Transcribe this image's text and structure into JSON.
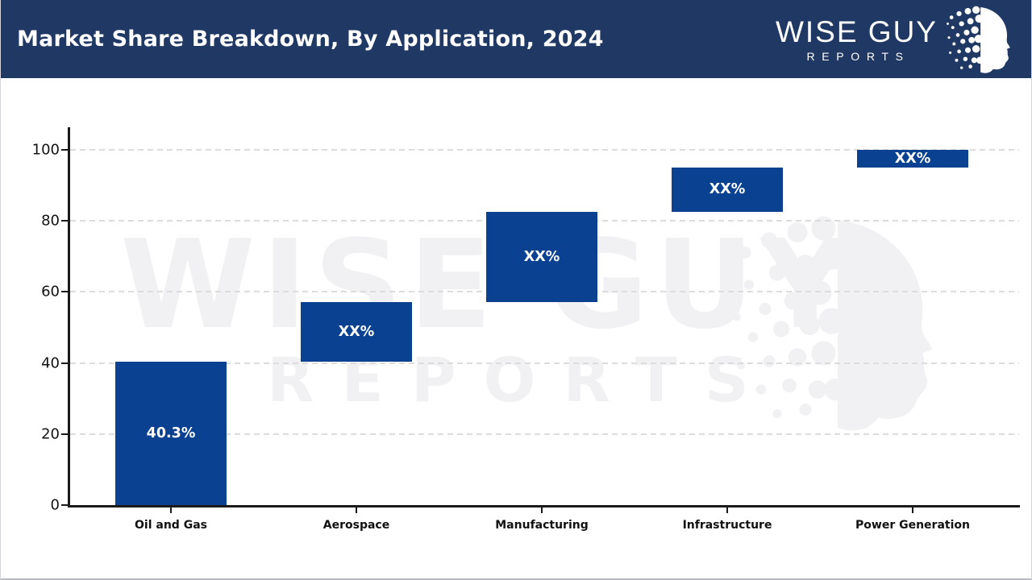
{
  "header": {
    "title": "Market Share Breakdown, By Application, 2024",
    "logo_line1": "WISE GUY",
    "logo_line2": "REPORTS"
  },
  "watermark": {
    "line1": "WISE GUY",
    "line2": "REPORTS"
  },
  "colors": {
    "header_bg": "#1f3864",
    "bar": "#0a4191",
    "bar_label": "#ffffff",
    "axis": "#1a1a1a",
    "grid": "#dcdcdc",
    "watermark": "#f1f1f4"
  },
  "chart_data": {
    "type": "bar",
    "subtype": "waterfall",
    "title": "Market Share Breakdown, By Application, 2024",
    "categories": [
      "Oil and Gas",
      "Aerospace",
      "Manufacturing",
      "Infrastructure",
      "Power Generation"
    ],
    "segments": [
      {
        "category": "Oil and Gas",
        "start": 0,
        "end": 40.3,
        "label": "40.3%"
      },
      {
        "category": "Aerospace",
        "start": 40.3,
        "end": 57.1,
        "label": "XX%"
      },
      {
        "category": "Manufacturing",
        "start": 57.1,
        "end": 82.6,
        "label": "XX%"
      },
      {
        "category": "Infrastructure",
        "start": 82.6,
        "end": 95.0,
        "label": "XX%"
      },
      {
        "category": "Power Generation",
        "start": 95.0,
        "end": 100.0,
        "label": "XX%"
      }
    ],
    "yticks": [
      0,
      20,
      40,
      60,
      80,
      100
    ],
    "ylim": [
      0,
      106
    ],
    "xlabel": "",
    "ylabel": "",
    "grid": "horizontal-dashed",
    "legend": null
  }
}
